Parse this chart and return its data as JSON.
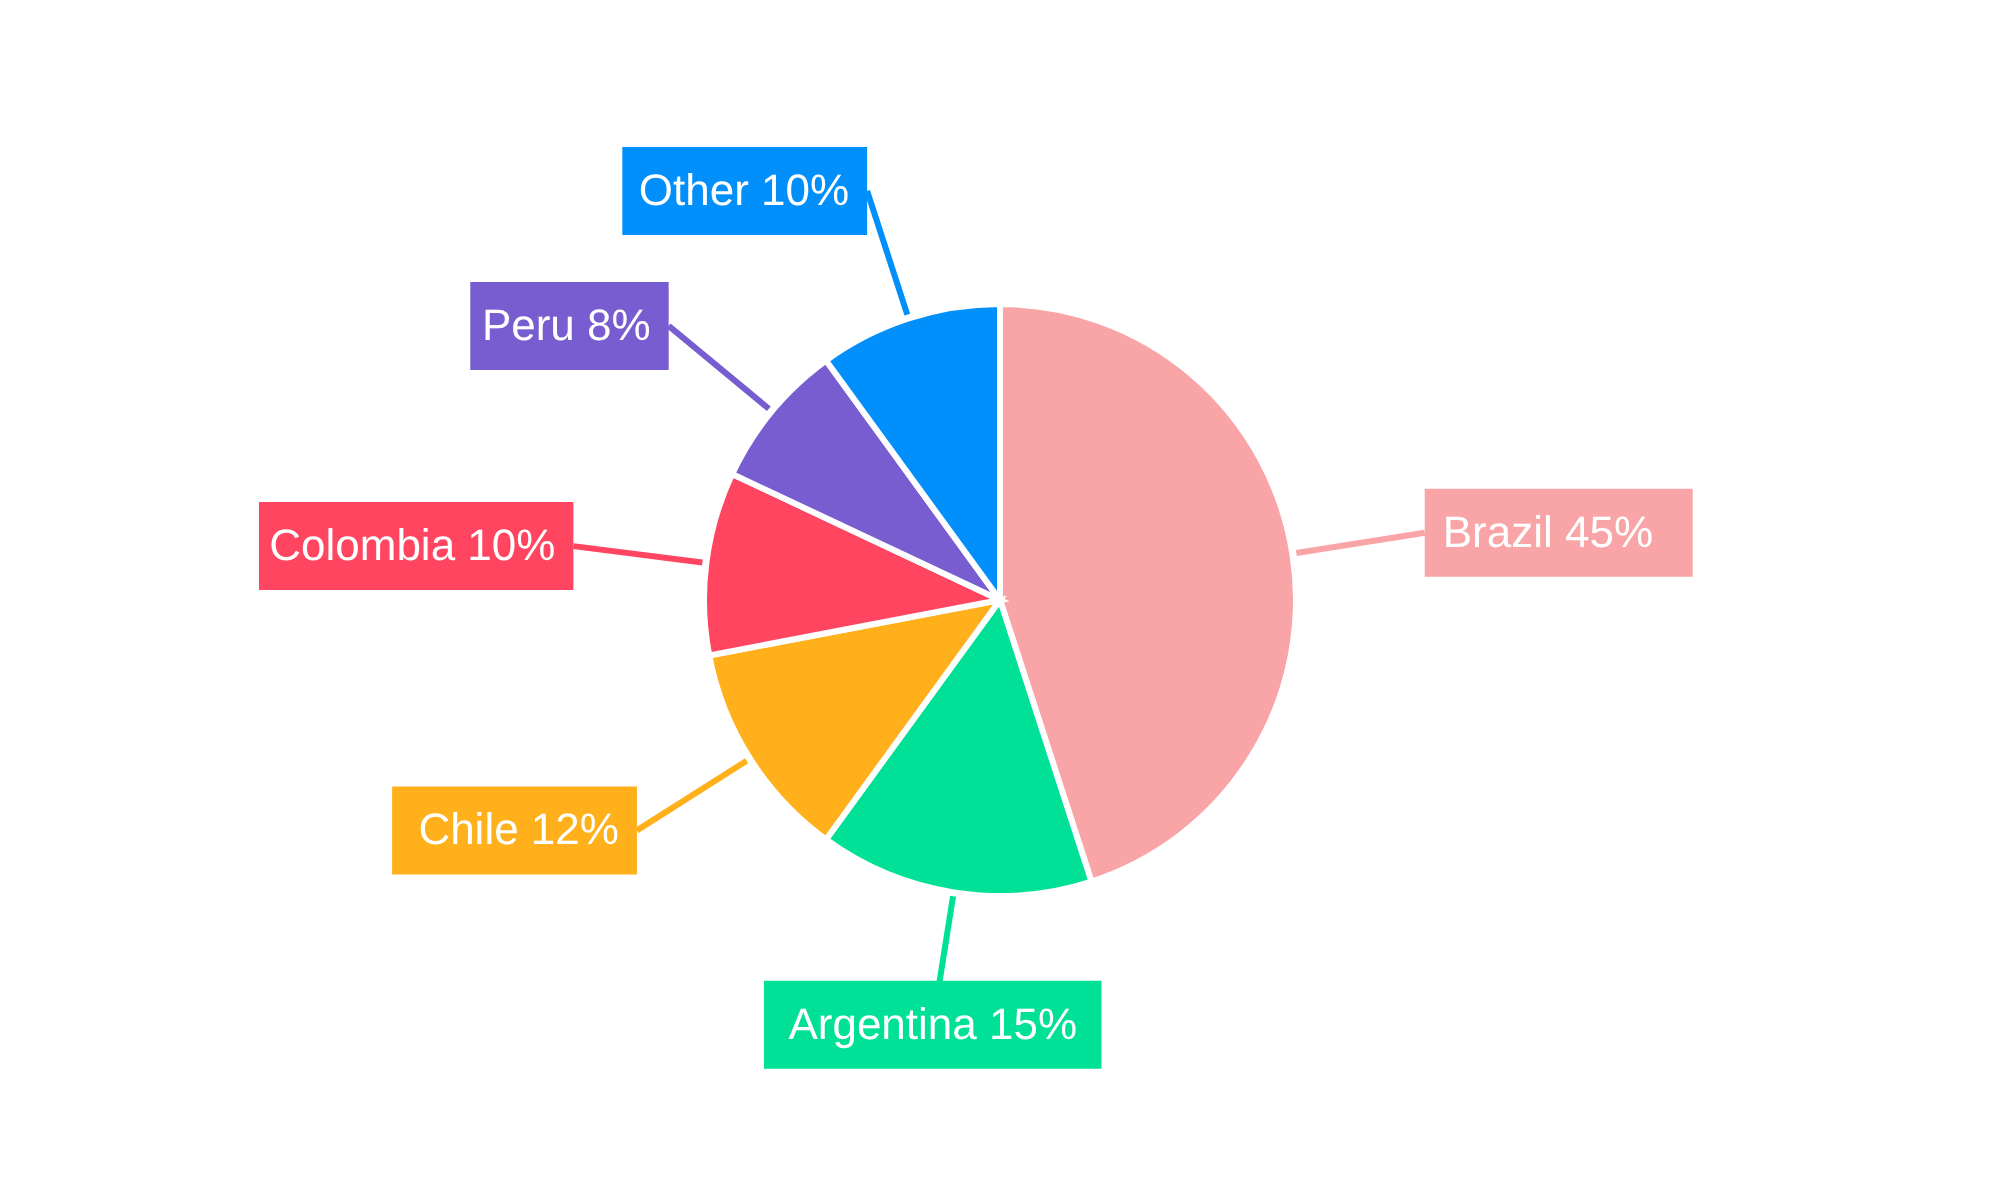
{
  "chart_data": {
    "type": "pie",
    "categories": [
      "Brazil",
      "Argentina",
      "Chile",
      "Colombia",
      "Peru",
      "Other"
    ],
    "values": [
      45,
      15,
      12,
      10,
      8,
      10
    ],
    "value_labels": [
      "45%",
      "15%",
      "12%",
      "10%",
      "8%",
      "10%"
    ],
    "colors": [
      "#f9a4a6",
      "#00e096",
      "#ffb01a",
      "#ff4560",
      "#775dd0",
      "#008ffb"
    ]
  }
}
